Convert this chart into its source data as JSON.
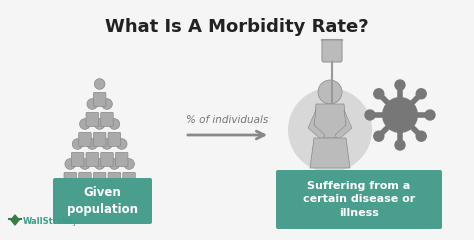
{
  "title": "What Is A Morbidity Rate?",
  "title_fontsize": 13,
  "title_color": "#222222",
  "bg_color": "#f5f5f5",
  "arrow_label": "% of individuals",
  "arrow_color": "#888888",
  "box_color": "#4a9e8e",
  "box_text_color": "#ffffff",
  "box1_label": "Given\npopulation",
  "box2_label": "Suffering from a\ncertain disease or\nillness",
  "person_color": "#aaaaaa",
  "person_ec": "#888888",
  "sick_bg_color": "#d8d8d8",
  "sick_color": "#bbbbbb",
  "sick_ec": "#888888",
  "virus_color": "#777777",
  "watermark_color": "#3a9e8a",
  "watermark_green": "#5aaa30"
}
